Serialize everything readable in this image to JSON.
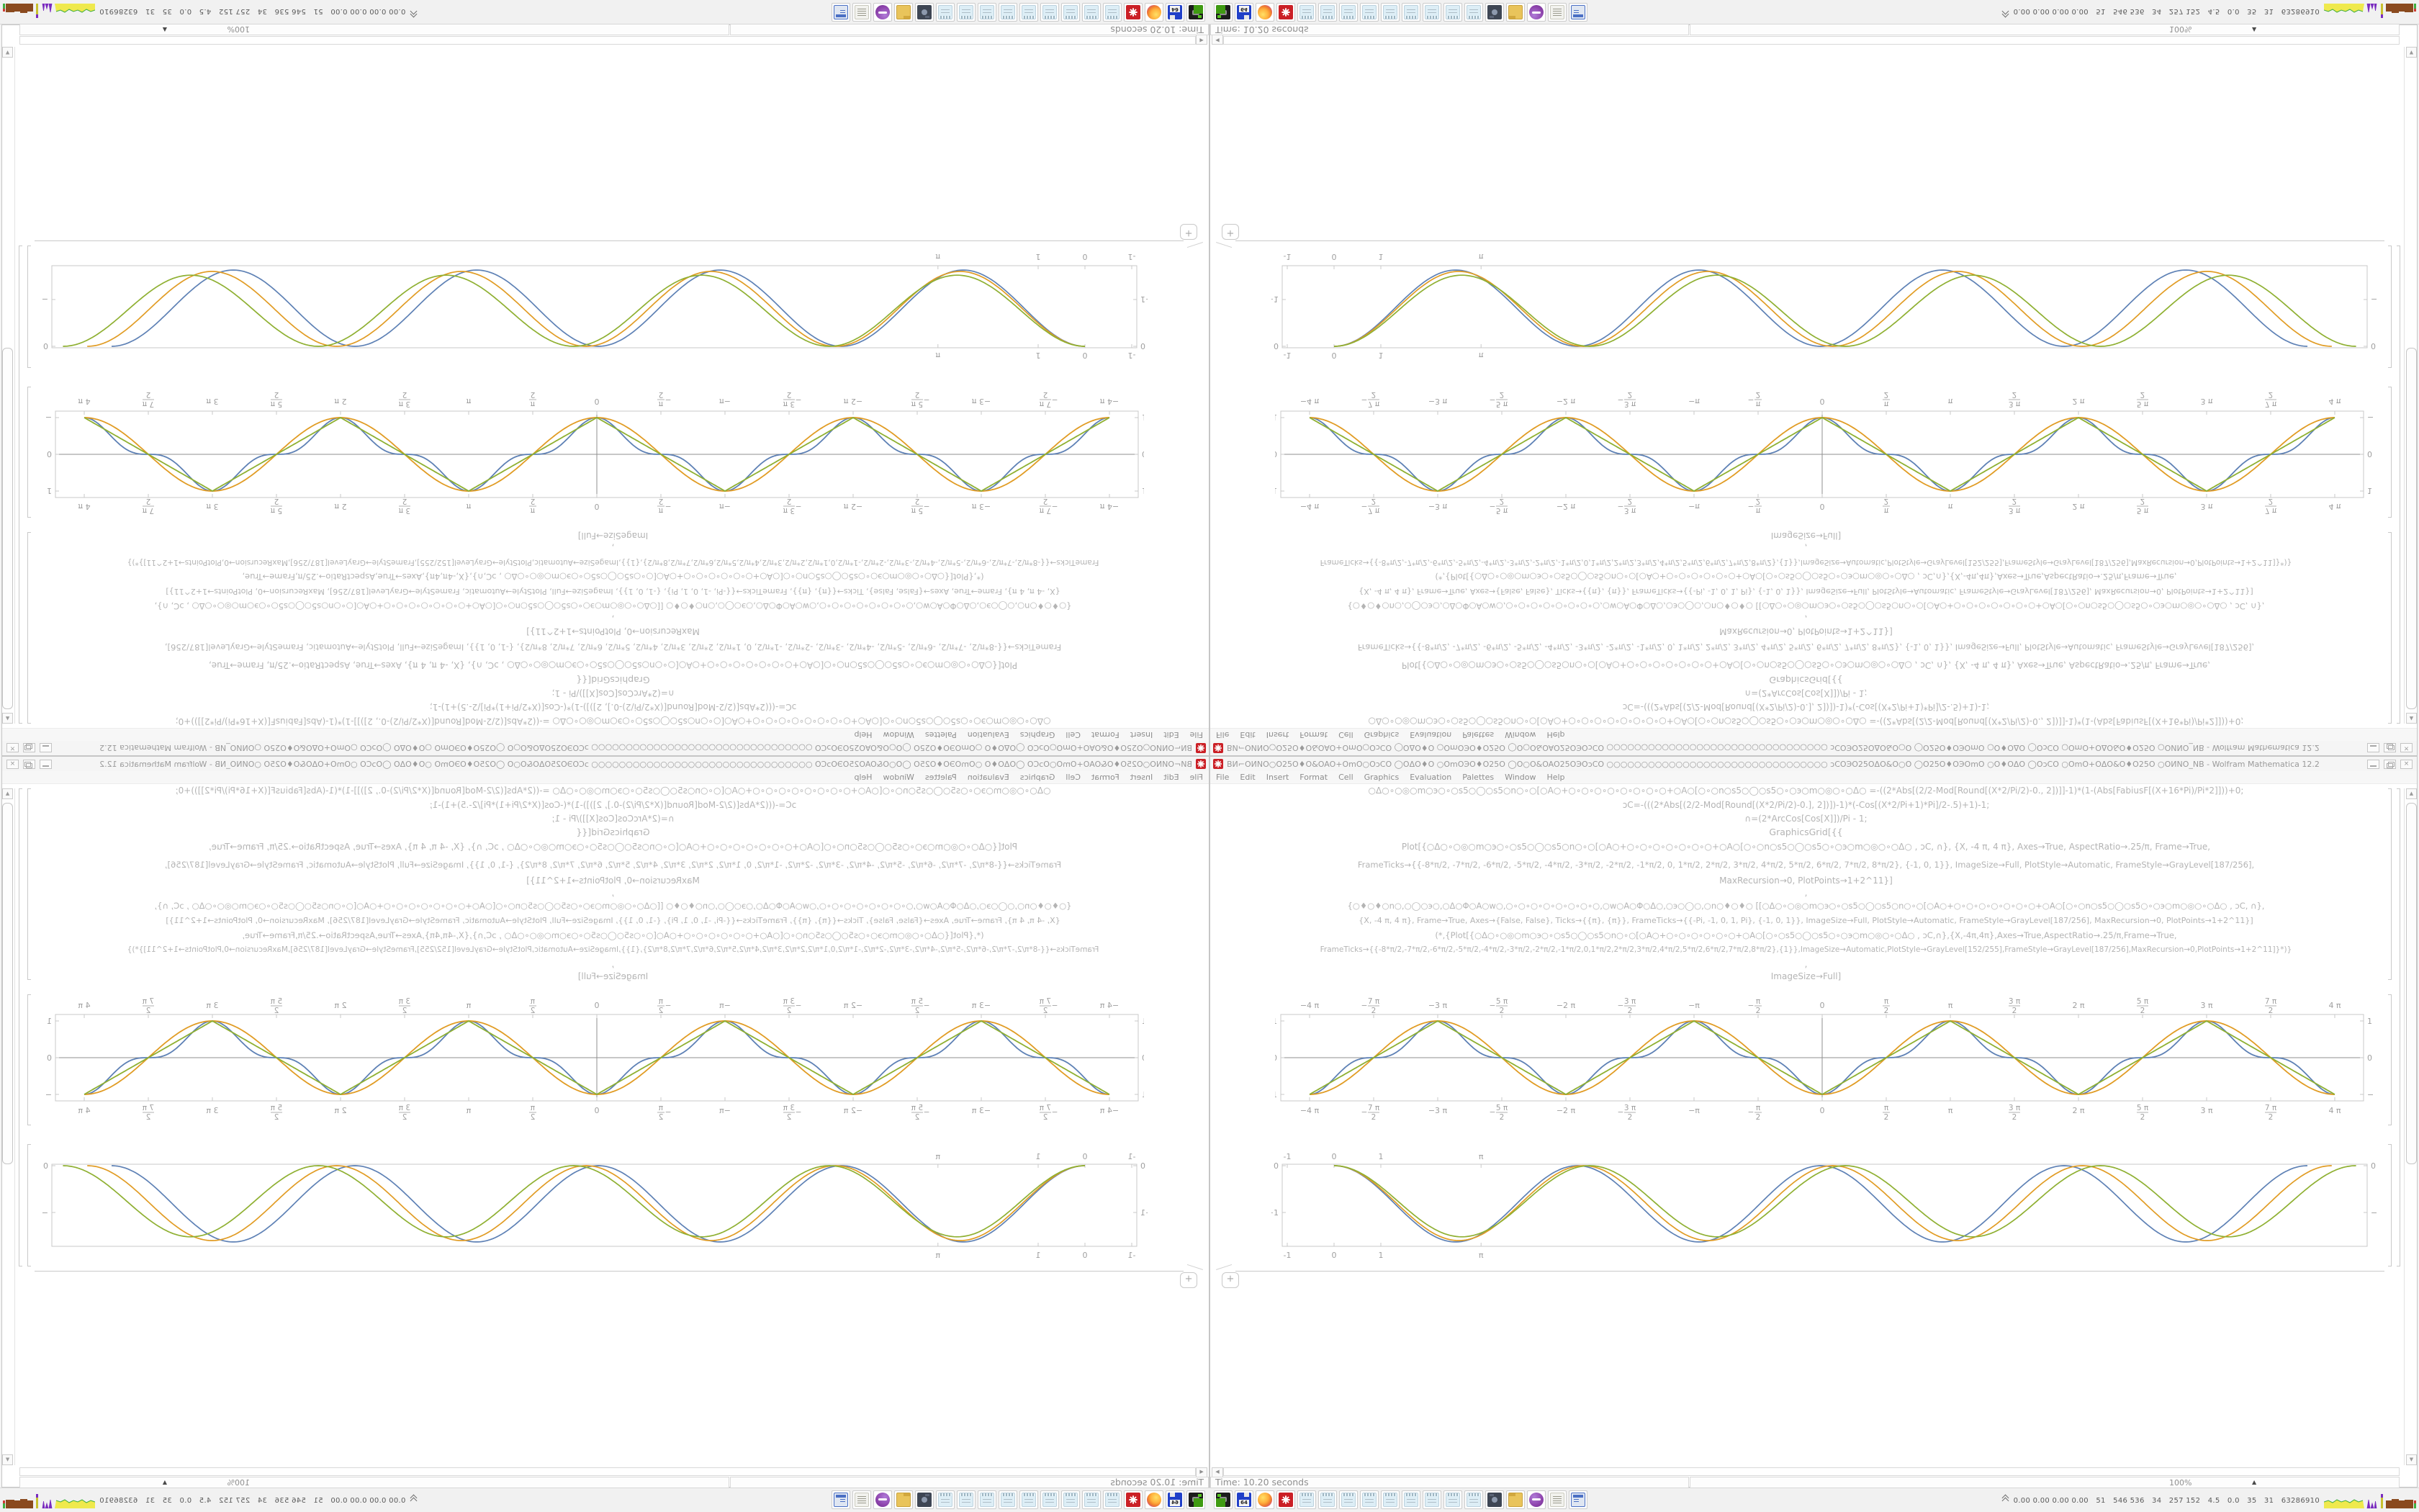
{
  "window": {
    "title": "ВИ⌐ОИNO○O25O♦O&OAO+OmO○OɔCO ◯OΔO♦O ○OmOЭO♦O25O ◯O○O&OAO25OЭOɔCO ○○○○○○○○○○○○○○○○○○○○○○○○○○○○○○○○ ɔCOЭO25OΔO&O○O ◯O25O♦OЭOmO ○O♦OΔO ◯OɔCO ○OmO+OΔO&O♦O25O ○ОИNO_NB - Wolfram Mathematica 12.2",
    "buttons": {
      "minimize": "",
      "restore": "",
      "close": "×"
    }
  },
  "menu": {
    "items": [
      "File",
      "Edit",
      "Insert",
      "Format",
      "Cell",
      "Graphics",
      "Evaluation",
      "Palettes",
      "Window",
      "Help"
    ]
  },
  "notebook": {
    "insert_plus": "+",
    "code_lines": [
      "○Δ○∘○◎○m○э○∘○s5○◯○s5○n○∘○[○A○+○∘○∘○∘○∘○∘○∘○∘○+○A○[○∘○n○s5○◯○s5○∘○э○m○◎○∘○Δ○   =-((2*Abs[(2/2-Mod[Round[(X*2/Pi/2)-0., 2])]]-1)*(1-(Abs[FabiusF[(X+16*Pi)/Pi*2]]))+0;",
      "ɔC=-(((2*Abs[(2/2-Mod[Round[(X*2/Pi/2)-0.], 2])])-1)*(-Cos[(X*2/Pi+1)*Pi]/2-.5)+1)-1;",
      "∩=(2*ArcCos[Cos[X]])/Pi - 1;",
      "GraphicsGrid[{{",
      "Plot[{○Δ○∘○◎○m○э○∘○s5○◯○s5○n○∘○[○A○+○∘○∘○∘○∘○∘○∘○+○A○[○∘○n○s5○◯○s5○∘○э○m○◎○∘○Δ○ , ɔC, ∩}, {X, -4 π, 4 π}, Axes→True, AspectRatio→.25/π, Frame→True,",
      "FrameTicks→{{-8*π/2, -7*π/2, -6*π/2, -5*π/2, -4*π/2, -3*π/2, -2*π/2, -1*π/2, 0, 1*π/2, 2*π/2, 3*π/2, 4*π/2, 5*π/2, 6*π/2, 7*π/2, 8*π/2}, {-1, 0, 1}}, ImageSize→Full, PlotStyle→Automatic, FrameStyle→GrayLevel[187/256],",
      "MaxRecursion→0, PlotPoints→1+2^11}]",
      ",",
      "{○♦○♦○n○,○◯○э○,○Δ○Φ○A○w○,○∘○∘○∘○∘○∘○∘○∘○,○w○A○Φ○Δ○,○э○◯○,○n○♦○♦○  [[○Δ○∘○◎○m○э○∘○s5○◯○s5○n○∘○[○A○+○∘○∘○∘○∘○∘○∘○+○A○[○∘○n○s5○◯○s5○∘○э○m○◎○∘○Δ○ , ɔC, ∩},",
      "{X, -4 π, 4 π}, Frame→True, Axes→{False, False}, Ticks→{{π}, {π}}, FrameTicks→{{-Pi, -1, 0, 1, Pi}, {-1, 0, 1}}, ImageSize→Full, PlotStyle→Automatic, FrameStyle→GrayLevel[187/256], MaxRecursion→0, PlotPoints→1+2^11}]",
      "(*,{Plot[{○Δ○∘○◎○m○э○∘○s5○◯○s5○n○∘○[○A○+○∘○∘○∘○∘○∘○+○A○[○∘○s5○◯○s5○∘○э○m○◎○∘○Δ○ , ɔC,∩},{X,-4π,4π},Axes→True,AspectRatio→.25/π,Frame→True,",
      "FrameTicks→{{-8*π/2,-7*π/2,-6*π/2,-5*π/2,-4*π/2,-3*π/2,-2*π/2,-1*π/2,0,1*π/2,2*π/2,3*π/2,4*π/2,5*π/2,6*π/2,7*π/2,8*π/2},{1}},ImageSize→Automatic,PlotStyle→GrayLevel[152/255],FrameStyle→GrayLevel[187/256],MaxRecursion→0,PlotPoints→1+2^11]}*)}",
      ",",
      "ImageSize→Full]"
    ]
  },
  "chart_data": [
    {
      "id": "waveform-grid-plot",
      "type": "line",
      "title": "",
      "xlabel": "",
      "ylabel": "",
      "x_min_pi": -4,
      "x_max_pi": 4,
      "x_tick_step_pi": 0.5,
      "ylim": [
        -1.18,
        1.18
      ],
      "y_ticks": [
        "1",
        "0",
        "−1"
      ],
      "frame": true,
      "axes": true,
      "grid": false,
      "legend": "none",
      "x_tick_labels": [
        {
          "k": -8,
          "text": "−4 π"
        },
        {
          "k": -7,
          "sign": "−",
          "num": "7 π",
          "den": "2"
        },
        {
          "k": -6,
          "text": "−3 π"
        },
        {
          "k": -5,
          "sign": "−",
          "num": "5 π",
          "den": "2"
        },
        {
          "k": -4,
          "text": "−2 π"
        },
        {
          "k": -3,
          "sign": "−",
          "num": "3 π",
          "den": "2"
        },
        {
          "k": -2,
          "text": "−π"
        },
        {
          "k": -1,
          "sign": "−",
          "num": "π",
          "den": "2"
        },
        {
          "k": 0,
          "text": "0"
        },
        {
          "k": 1,
          "sign": "",
          "num": "π",
          "den": "2"
        },
        {
          "k": 2,
          "text": "π"
        },
        {
          "k": 3,
          "sign": "",
          "num": "3 π",
          "den": "2"
        },
        {
          "k": 4,
          "text": "2 π"
        },
        {
          "k": 5,
          "sign": "",
          "num": "5 π",
          "den": "2"
        },
        {
          "k": 6,
          "text": "3 π"
        },
        {
          "k": 7,
          "sign": "",
          "num": "7 π",
          "den": "2"
        },
        {
          "k": 8,
          "text": "4 π"
        }
      ],
      "series": [
        {
          "name": "fabius-smooth-wave",
          "fn": "smooth",
          "color": "#5e81b5",
          "amplitude": 1,
          "period_pi": 2
        },
        {
          "name": "cosine-wave",
          "fn": "negcos",
          "color": "#e19c24",
          "amplitude": 1,
          "period_pi": 2
        },
        {
          "name": "triangle-wave",
          "fn": "triangle",
          "color": "#8fb032",
          "amplitude": 1,
          "period_pi": 2
        }
      ]
    },
    {
      "id": "arccos-branch-plot",
      "type": "line",
      "title": "",
      "xlabel": "",
      "ylabel": "",
      "x_min": -1.35,
      "x_max": 22.1,
      "ylim": [
        -1.72,
        0.05
      ],
      "frame": true,
      "axes": false,
      "grid": false,
      "legend": "none",
      "x_ticks": [
        {
          "x": -1,
          "label": "-1"
        },
        {
          "x": 0,
          "label": "0"
        },
        {
          "x": 1,
          "label": "1"
        },
        {
          "x": 3.14159,
          "label": "π"
        }
      ],
      "y_ticks": [
        {
          "y": 0,
          "label": "0"
        },
        {
          "y": -1,
          "label": "−1"
        }
      ],
      "series": [
        {
          "name": "blue-branch",
          "color": "#5e81b5",
          "period": 5.2,
          "depth": 1.63,
          "cycles": 4
        },
        {
          "name": "orange-branch",
          "color": "#e19c24",
          "period": 5.33,
          "depth": 1.6,
          "cycles": 4
        },
        {
          "name": "green-branch",
          "color": "#8fb032",
          "period": 5.46,
          "depth": 1.52,
          "cycles": 4
        }
      ]
    }
  ],
  "scrollbars": {
    "up": "▲",
    "down": "▼",
    "left": "◀"
  },
  "status": {
    "time": "Time: 10.20 seconds",
    "magnification": "100%",
    "mag_caret": "▲"
  },
  "taskbar": {
    "buttons": [
      {
        "name": "kvm-console-icon",
        "cls": "ti-kvm"
      },
      {
        "name": "floppy-64-icon",
        "cls": "ti-floppy",
        "label": "64"
      },
      {
        "name": "firefox-icon",
        "cls": "ti-firefox"
      },
      {
        "name": "mathematica-icon",
        "cls": "ti-red",
        "gear": true
      },
      {
        "name": "notepad-icon",
        "cls": "ti-notepad"
      },
      {
        "name": "notepad-icon",
        "cls": "ti-notepad"
      },
      {
        "name": "notepad-icon",
        "cls": "ti-notepad"
      },
      {
        "name": "notepad-icon",
        "cls": "ti-notepad"
      },
      {
        "name": "notepad-icon",
        "cls": "ti-notepad"
      },
      {
        "name": "notepad-icon",
        "cls": "ti-notepad"
      },
      {
        "name": "notepad-icon",
        "cls": "ti-notepad"
      },
      {
        "name": "notepad-icon",
        "cls": "ti-notepad"
      },
      {
        "name": "notepad-icon",
        "cls": "ti-notepad"
      },
      {
        "name": "screenshot-icon",
        "cls": "ti-camera"
      },
      {
        "name": "folder-icon",
        "cls": "ti-folder"
      },
      {
        "name": "emoji-purple-icon",
        "cls": "ti-purple"
      },
      {
        "name": "printer-scroll-icon",
        "cls": "ti-scroll"
      },
      {
        "name": "terminal-icon",
        "cls": "ti-terminal"
      }
    ],
    "monitor_numbers": "0.00 0.00 0.00 0.00   51   546 536   34   257 152   4.5   0.0   35   31   63286910"
  },
  "colors": {
    "curve_blue": "#5e81b5",
    "curve_orange": "#e19c24",
    "curve_green": "#8fb032",
    "frame_gray": "#c9c9c9",
    "axis_gray": "#8f8f8f",
    "tick_label": "#9f9f9f",
    "code_text": "#b4b4b4",
    "mathematica_red": "#cb2026"
  }
}
